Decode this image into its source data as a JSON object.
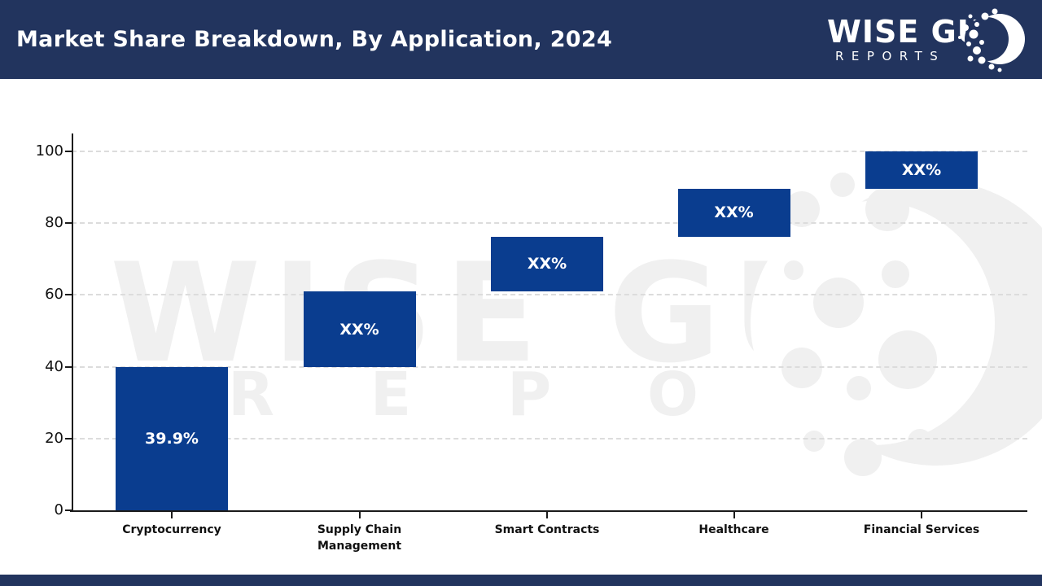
{
  "header": {
    "title": "Market Share Breakdown, By Application, 2024",
    "brand": {
      "line1": "WISE GUY",
      "line2": "R E P O R T S"
    }
  },
  "watermark": {
    "line1": "WISE GUY",
    "line2": "R E P O R T S"
  },
  "footer": {},
  "colors": {
    "header_bg": "#22345e",
    "footer_bg": "#22345e",
    "bar": "#0a3d8f",
    "bar_label": "#ffffff",
    "grid": "#dcdcdc",
    "axis": "#1a1a1a",
    "watermark": "#f0f0f0"
  },
  "chart_data": {
    "type": "bar",
    "subtype": "waterfall",
    "title": "Market Share Breakdown, By Application, 2024",
    "categories": [
      "Cryptocurrency",
      "Supply Chain Management",
      "Smart Contracts",
      "Healthcare",
      "Financial Services"
    ],
    "segments": [
      {
        "start": 0,
        "end": 39.9
      },
      {
        "start": 39.9,
        "end": 61
      },
      {
        "start": 61,
        "end": 76.3
      },
      {
        "start": 76.3,
        "end": 89.6
      },
      {
        "start": 89.6,
        "end": 100
      }
    ],
    "bar_labels": [
      "39.9%",
      "XX%",
      "XX%",
      "XX%",
      "XX%"
    ],
    "xlabel": "",
    "ylabel": "",
    "ylim": [
      0,
      100
    ],
    "yticks": [
      0,
      20,
      40,
      60,
      80,
      100
    ],
    "grid": "horizontal dashed",
    "legend": "none"
  }
}
